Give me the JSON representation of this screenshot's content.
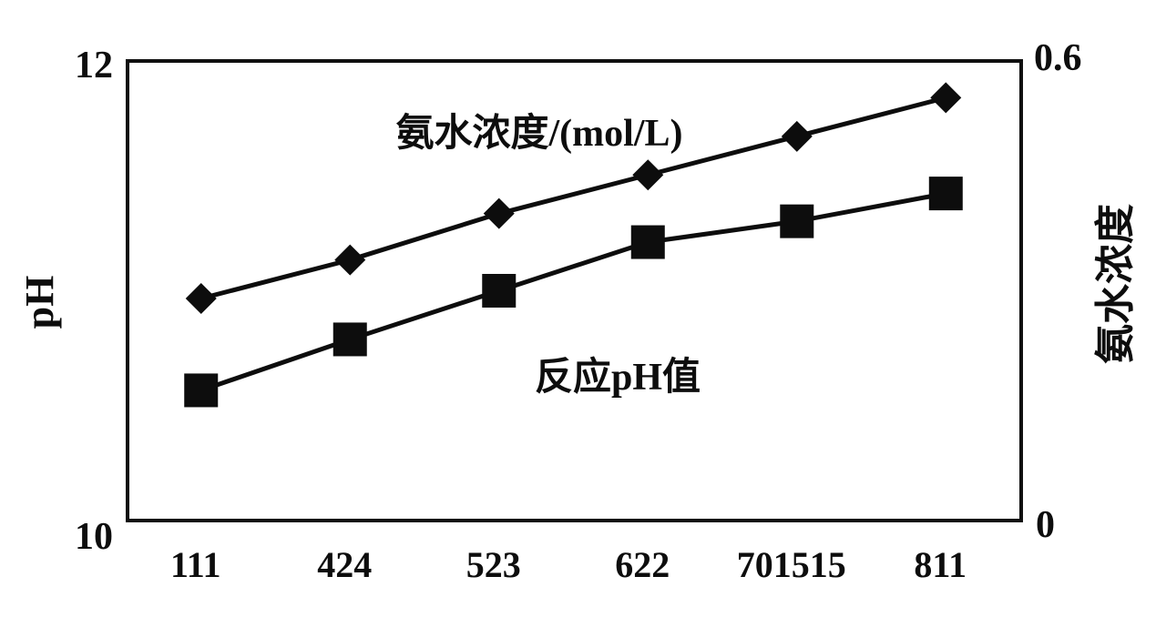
{
  "figure": {
    "background_color": "#ffffff",
    "ink_color": "#0d0d0d"
  },
  "chart_data": {
    "type": "line",
    "categories": [
      "111",
      "424",
      "523",
      "622",
      "701515",
      "811"
    ],
    "series": [
      {
        "name": "氨水浓度/(mol/L)",
        "marker": "diamond",
        "axis": "right",
        "values": [
          0.29,
          0.34,
          0.4,
          0.45,
          0.5,
          0.55
        ]
      },
      {
        "name": "反应pH值",
        "marker": "square",
        "axis": "left",
        "values": [
          10.57,
          10.79,
          11.0,
          11.21,
          11.3,
          11.42
        ]
      }
    ],
    "left_axis": {
      "label": "pH",
      "min": 10,
      "max": 12,
      "tick_top": "12",
      "tick_bottom": "10"
    },
    "right_axis": {
      "label": "氨水浓度",
      "min": 0,
      "max": 0.6,
      "tick_top": "0.6",
      "tick_bottom": "0"
    },
    "grid": "off",
    "legend": "none (labels drawn inside plot)",
    "line_color": "#0d0d0d"
  }
}
